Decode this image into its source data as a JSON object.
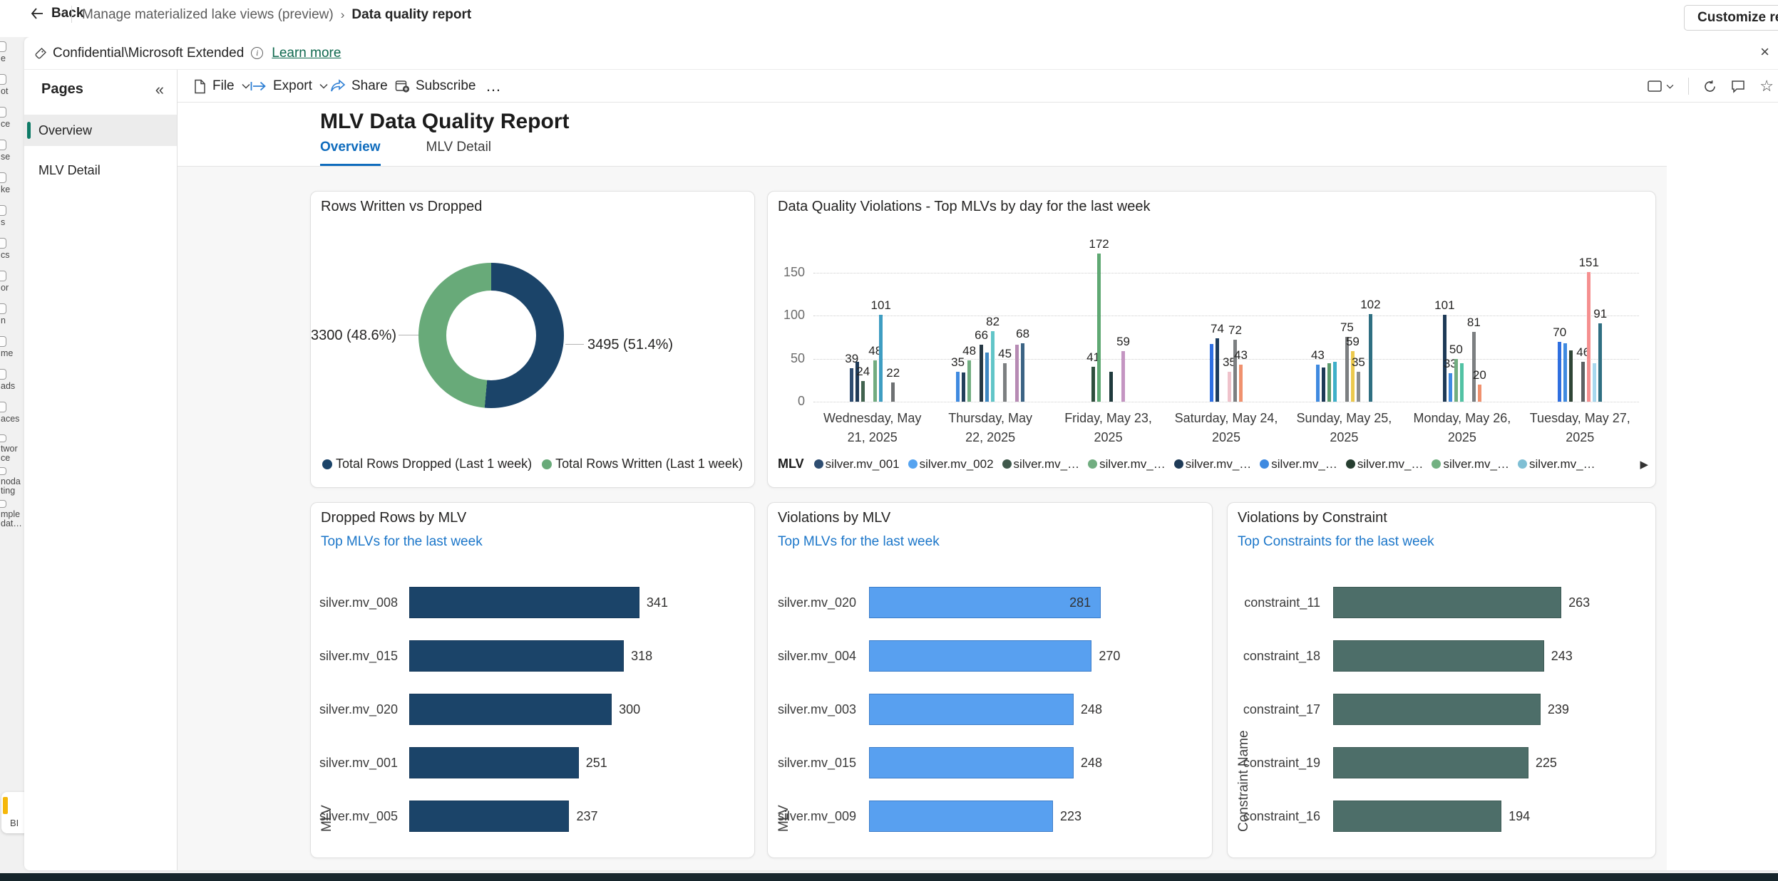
{
  "header": {
    "back_label": "Back",
    "breadcrumb_parent": "Manage materialized lake views (preview)",
    "breadcrumb_current": "Data quality report",
    "customize_button": "Customize report"
  },
  "banner": {
    "label": "Confidential\\Microsoft Extended",
    "info_glyph": "i",
    "learn_more": "Learn more",
    "close": "×"
  },
  "left_rail": {
    "fragments": [
      "e",
      "ot",
      "ce",
      "se",
      "ke",
      "s",
      "cs",
      "or",
      "n",
      "me",
      "ads",
      "aces",
      "twor\nce",
      "noda\nting",
      "mple\ndat…"
    ],
    "bi_label": "BI"
  },
  "pages_panel": {
    "title": "Pages",
    "collapse_icon": "«",
    "items": [
      {
        "label": "Overview",
        "selected": true
      },
      {
        "label": "MLV Detail",
        "selected": false
      }
    ]
  },
  "toolbar": {
    "file": "File",
    "export": "Export",
    "share": "Share",
    "subscribe": "Subscribe",
    "more": "…"
  },
  "report": {
    "title": "MLV Data Quality Report",
    "tabs": [
      {
        "label": "Overview",
        "active": true
      },
      {
        "label": "MLV Detail",
        "active": false
      }
    ]
  },
  "chart_data": [
    {
      "id": "donut",
      "type": "donut",
      "title": "Rows Written vs Dropped",
      "slices": [
        {
          "name": "Total Rows Dropped (Last 1 week)",
          "value": 3495,
          "pct": 51.4,
          "callout": "3495 (51.4%)",
          "color": "#1b4469",
          "side": "right"
        },
        {
          "name": "Total Rows Written (Last 1 week)",
          "value": 3300,
          "pct": 48.6,
          "callout": "3300 (48.6%)",
          "color": "#68aa79",
          "side": "left"
        }
      ]
    },
    {
      "id": "columns",
      "type": "grouped_column",
      "title": "Data Quality Violations - Top MLVs by day for the last week",
      "y_ticks": [
        0,
        50,
        100,
        150
      ],
      "legend_title": "MLV",
      "legend": [
        {
          "label": "silver.mv_001",
          "color": "#2e4d71"
        },
        {
          "label": "silver.mv_002",
          "color": "#55a3f0"
        },
        {
          "label": "silver.mv_…",
          "color": "#3f584b"
        },
        {
          "label": "silver.mv_…",
          "color": "#71ad80"
        },
        {
          "label": "silver.mv_…",
          "color": "#1e3a57"
        },
        {
          "label": "silver.mv_…",
          "color": "#3f8ae0"
        },
        {
          "label": "silver.mv_…",
          "color": "#263e30"
        },
        {
          "label": "silver.mv_…",
          "color": "#72b181"
        },
        {
          "label": "silver.mv_…",
          "color": "#7fbfd4"
        }
      ],
      "legend_more_icon": "▶",
      "groups": [
        {
          "line1": "Wednesday, May",
          "line2": "21, 2025",
          "bars": [
            {
              "v": 39,
              "color": "#2e4d71",
              "label": true
            },
            {
              "v": 46,
              "color": "#1e3a57",
              "label": false
            },
            {
              "v": 24,
              "color": "#41634f",
              "label": true
            },
            {
              "v": 48,
              "color": "#72ac80",
              "label": true,
              "gap": true
            },
            {
              "v": 101,
              "color": "#3e9dc2",
              "label": true
            },
            {
              "v": 22,
              "color": "#6e7173",
              "label": true,
              "gap": true
            }
          ]
        },
        {
          "line1": "Thursday, May",
          "line2": "22, 2025",
          "bars": [
            {
              "v": 35,
              "color": "#3f8ae0",
              "label": true
            },
            {
              "v": 34,
              "color": "#23405c",
              "label": false
            },
            {
              "v": 48,
              "color": "#71ad80",
              "label": true
            },
            {
              "v": 66,
              "color": "#263844",
              "label": true,
              "gap": true
            },
            {
              "v": 57,
              "color": "#3d87c2",
              "label": false
            },
            {
              "v": 82,
              "color": "#62c5c8",
              "label": true
            },
            {
              "v": 45,
              "color": "#7c7f81",
              "label": true,
              "gap": true
            },
            {
              "v": 66,
              "color": "#b78bb4",
              "label": false,
              "gap": true
            },
            {
              "v": 68,
              "color": "#3c6485",
              "label": true
            }
          ]
        },
        {
          "line1": "Friday, May 23,",
          "line2": "2025",
          "bars": [
            {
              "v": 41,
              "color": "#2f4f3e",
              "label": true
            },
            {
              "v": 172,
              "color": "#5fa873",
              "label": true
            },
            {
              "v": 35,
              "color": "#1f3a3c",
              "label": false,
              "gap": true
            },
            {
              "v": 59,
              "color": "#c495c2",
              "label": true,
              "gap": true
            }
          ]
        },
        {
          "line1": "Saturday, May 24,",
          "line2": "2025",
          "bars": [
            {
              "v": 67,
              "color": "#2e6fe3",
              "label": false
            },
            {
              "v": 74,
              "color": "#1c3c5e",
              "label": true
            },
            {
              "v": 35,
              "color": "#efc2cb",
              "label": true,
              "gap": true
            },
            {
              "v": 72,
              "color": "#7c7f81",
              "label": true
            },
            {
              "v": 43,
              "color": "#f0916e",
              "label": true
            }
          ]
        },
        {
          "line1": "Sunday, May 25,",
          "line2": "2025",
          "bars": [
            {
              "v": 43,
              "color": "#3f8ae0",
              "label": true
            },
            {
              "v": 40,
              "color": "#1e3a57",
              "label": false
            },
            {
              "v": 45,
              "color": "#5c9a6b",
              "label": false
            },
            {
              "v": 46,
              "color": "#3fb0c9",
              "label": false
            },
            {
              "v": 75,
              "color": "#7c7f81",
              "label": true,
              "gap": true
            },
            {
              "v": 59,
              "color": "#ecc94e",
              "label": true
            },
            {
              "v": 35,
              "color": "#8a8d8f",
              "label": true
            },
            {
              "v": 102,
              "color": "#2f6f82",
              "label": true,
              "gap": true
            }
          ]
        },
        {
          "line1": "Monday, May 26,",
          "line2": "2025",
          "bars": [
            {
              "v": 101,
              "color": "#1e3a57",
              "label": true
            },
            {
              "v": 33,
              "color": "#3f8ae0",
              "label": true
            },
            {
              "v": 50,
              "color": "#71ad80",
              "label": true
            },
            {
              "v": 45,
              "color": "#52c2a4",
              "label": false
            },
            {
              "v": 81,
              "color": "#7c7f81",
              "label": true,
              "gap": true
            },
            {
              "v": 20,
              "color": "#f0916e",
              "label": true
            }
          ]
        },
        {
          "line1": "Tuesday, May 27,",
          "line2": "2025",
          "bars": [
            {
              "v": 70,
              "color": "#2f6fe0",
              "label": true
            },
            {
              "v": 68,
              "color": "#3f8ae0",
              "label": false
            },
            {
              "v": 60,
              "color": "#2f4536",
              "label": false
            },
            {
              "v": 46,
              "color": "#5d6163",
              "label": true,
              "gap": true
            },
            {
              "v": 151,
              "color": "#f58f8f",
              "label": true
            },
            {
              "v": 45,
              "color": "#a8d8ee",
              "label": false
            },
            {
              "v": 91,
              "color": "#2f6f82",
              "label": true
            }
          ]
        }
      ]
    },
    {
      "id": "dropped",
      "type": "bar",
      "title": "Dropped Rows by MLV",
      "subtitle": "Top MLVs for the last week",
      "y_axis_title": "MLV",
      "color": "#1b4469",
      "border": "#16395a",
      "categories": [
        "silver.mv_008",
        "silver.mv_015",
        "silver.mv_020",
        "silver.mv_001",
        "silver.mv_005"
      ],
      "values": [
        341,
        318,
        300,
        251,
        237
      ]
    },
    {
      "id": "violations_mlv",
      "type": "bar",
      "title": "Violations by MLV",
      "subtitle": "Top MLVs for the last week",
      "y_axis_title": "MLV",
      "color": "#58a0f0",
      "border": "#3b7cc9",
      "first_label_inside": true,
      "categories": [
        "silver.mv_020",
        "silver.mv_004",
        "silver.mv_003",
        "silver.mv_015",
        "silver.mv_009"
      ],
      "values": [
        281,
        270,
        248,
        248,
        223
      ]
    },
    {
      "id": "violations_constraint",
      "type": "bar",
      "title": "Violations by Constraint",
      "subtitle": "Top Constraints for the last week",
      "y_axis_title": "Constraint Name",
      "color": "#4d6e69",
      "border": "#3d5a55",
      "categories": [
        "constraint_11",
        "constraint_18",
        "constraint_17",
        "constraint_19",
        "constraint_16"
      ],
      "values": [
        263,
        243,
        239,
        225,
        194
      ]
    }
  ]
}
